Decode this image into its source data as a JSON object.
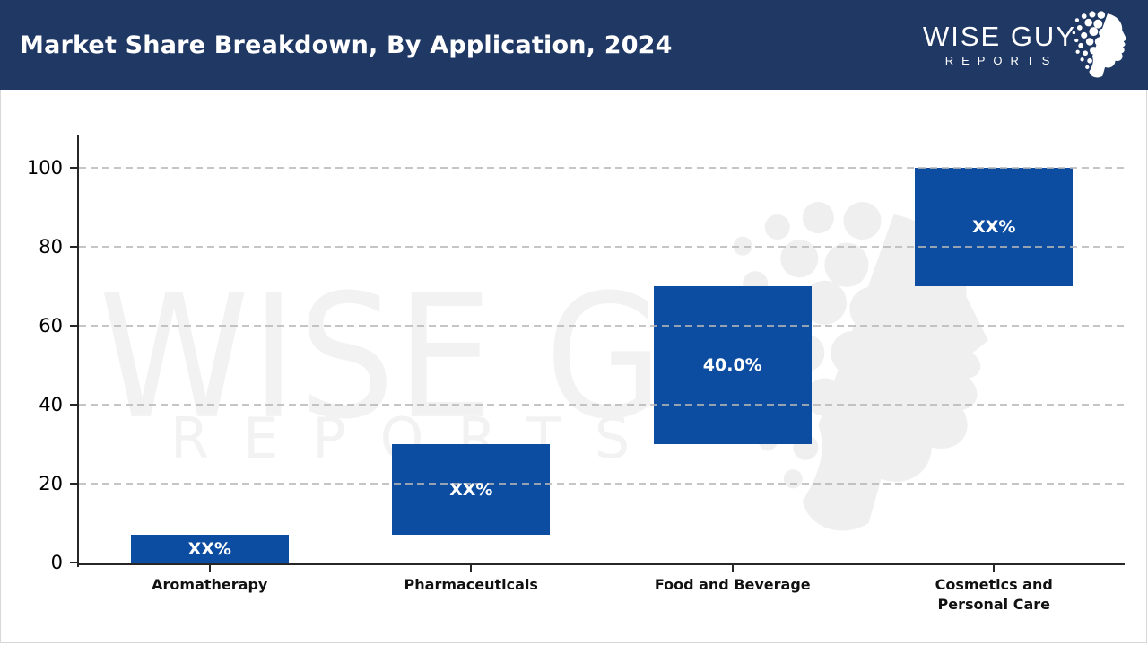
{
  "header": {
    "title": "Market Share Breakdown, By Application, 2024",
    "background_color": "#1F3864",
    "logo": {
      "name": "WISE GUY",
      "subtitle": "REPORTS"
    }
  },
  "watermark": {
    "text": "WISE GU",
    "subtext": "REPORTS"
  },
  "chart_data": {
    "type": "bar",
    "subtype": "floating-segment-waterfall",
    "title": "Market Share Breakdown, By Application, 2024",
    "categories": [
      "Aromatherapy",
      "Pharmaceuticals",
      "Food and Beverage",
      "Cosmetics and Personal Care"
    ],
    "segments": [
      {
        "category": "Aromatherapy",
        "start": 0,
        "end": 7,
        "value": 7,
        "label": "XX%"
      },
      {
        "category": "Pharmaceuticals",
        "start": 7,
        "end": 30,
        "value": 23,
        "label": "XX%"
      },
      {
        "category": "Food and Beverage",
        "start": 30,
        "end": 70,
        "value": 40,
        "label": "40.0%"
      },
      {
        "category": "Cosmetics and Personal Care",
        "start": 70,
        "end": 100,
        "value": 30,
        "label": "XX%"
      }
    ],
    "xlabel": "",
    "ylabel": "",
    "ylim": [
      0,
      105
    ],
    "yticks": [
      0,
      20,
      40,
      60,
      80,
      100
    ],
    "grid": "horizontal-dashed",
    "legend": "none",
    "bar_color": "#0D4DA1",
    "bar_label_color": "#FFFFFF",
    "axis_color": "#262626",
    "grid_color": "#C9C9C9"
  }
}
